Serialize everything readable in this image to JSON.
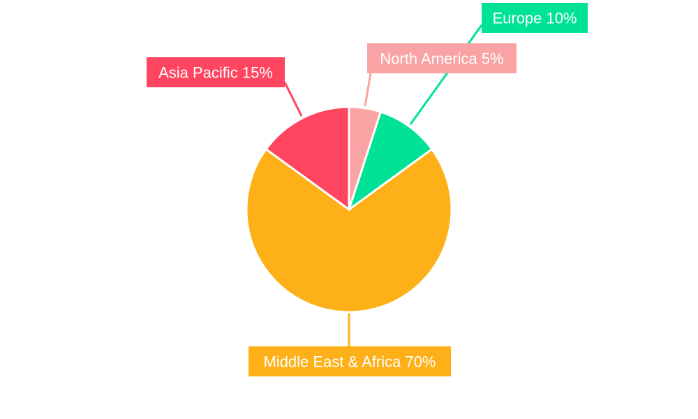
{
  "chart_data": {
    "type": "pie",
    "start_angle_deg": 0,
    "direction": "clockwise",
    "legend": "none",
    "slices": [
      {
        "label": "North America",
        "value": 5,
        "data_label": "North America 5%",
        "color": "#f9a3a4"
      },
      {
        "label": "Europe",
        "value": 10,
        "data_label": "Europe 10%",
        "color": "#00e396"
      },
      {
        "label": "Middle East & Africa",
        "value": 70,
        "data_label": "Middle East & Africa 70%",
        "color": "#feb019"
      },
      {
        "label": "Asia Pacific",
        "value": 15,
        "data_label": "Asia Pacific 15%",
        "color": "#ff4560"
      }
    ]
  }
}
